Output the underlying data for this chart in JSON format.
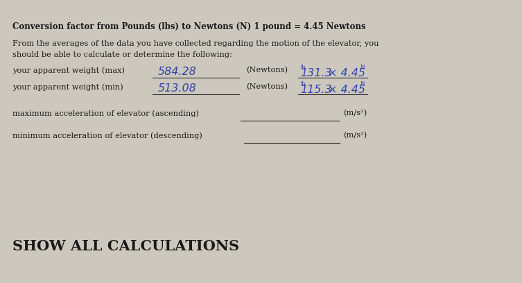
{
  "bg_color": "#cdc8be",
  "title_bold": "Conversion factor from Pounds (lbs) to Newtons (N) 1 pound = 4.45 Newtons",
  "body_line1": "From the averages of the data you have collected regarding the motion of the elevator, you",
  "body_line2": "should be able to calculate or determine the following:",
  "row1_label": "your apparent weight (max)",
  "row1_value": "584.28",
  "row1_newtons_label": "(Newtons)",
  "row2_label": "your apparent weight (min)",
  "row2_value": "513.08",
  "row2_newtons_label": "(Newtons)",
  "row3_label": "maximum acceleration of elevator (ascending)",
  "row3_units": "(m/s²)",
  "row4_label": "minimum acceleration of elevator (descending)",
  "row4_units": "(m/s²)",
  "footer": "SHOW ALL CALCULATIONS",
  "title_fontsize": 8.5,
  "body_fontsize": 8.2,
  "label_fontsize": 8.2,
  "hw_fontsize": 11.5,
  "hw_super_fontsize": 6.0,
  "footer_fontsize": 15,
  "text_color": "#1a1a1a",
  "hw_color": "#3344aa",
  "line_color": "#2a2a2a",
  "fig_w": 7.53,
  "fig_h": 4.08,
  "dpi": 100
}
